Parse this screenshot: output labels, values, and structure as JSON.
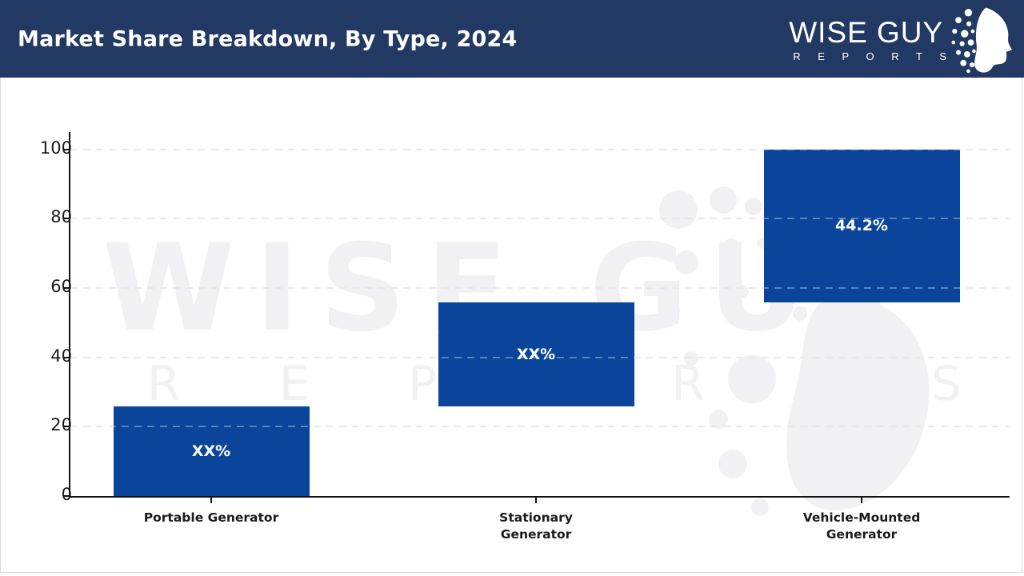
{
  "header": {
    "title": "Market Share Breakdown, By Type, 2024",
    "bg_color": "#223963",
    "logo": {
      "name": "Wise Guy Reports",
      "line1": "WISE GUY",
      "line2": "R E P O R T S"
    }
  },
  "chart_data": {
    "type": "bar",
    "subtype": "floating-stacked-percentage",
    "title": "Market Share Breakdown, By Type, 2024",
    "categories": [
      "Portable Generator",
      "Stationary Generator",
      "Vehicle-Mounted Generator"
    ],
    "category_label_lines": [
      [
        "Portable Generator"
      ],
      [
        "Stationary",
        "Generator"
      ],
      [
        "Vehicle-Mounted",
        "Generator"
      ]
    ],
    "segments": [
      {
        "category": "Portable Generator",
        "start": 0,
        "end": 25.8,
        "value_label": "XX%"
      },
      {
        "category": "Stationary Generator",
        "start": 25.8,
        "end": 55.8,
        "value_label": "XX%"
      },
      {
        "category": "Vehicle-Mounted Generator",
        "start": 55.8,
        "end": 100,
        "value_label": "44.2%"
      }
    ],
    "yticks": [
      0,
      20,
      40,
      60,
      80,
      100
    ],
    "ylim": [
      0,
      105
    ],
    "grid": true,
    "legend": false,
    "bar_color": "#0a459b",
    "axis_color": "#111111",
    "gridline_color": "#dedede",
    "value_label_color": "#ffffff",
    "watermark": {
      "line1": "WISE GUY",
      "line2": "R E P O R T S"
    }
  }
}
